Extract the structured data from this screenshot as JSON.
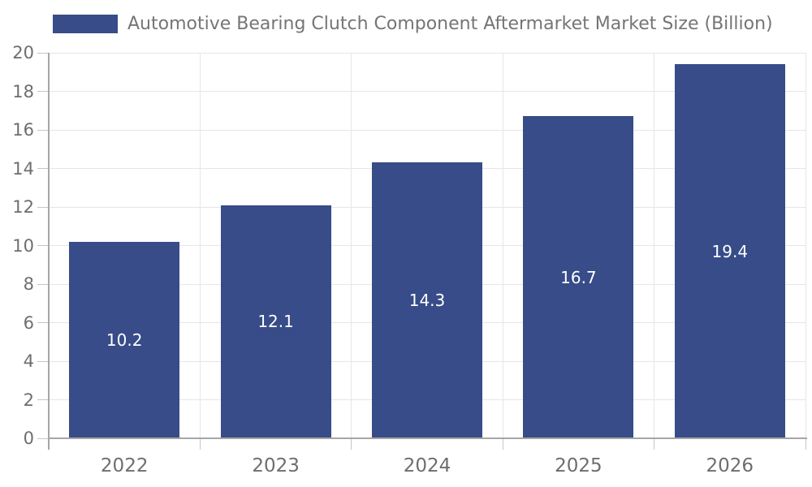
{
  "chart_data": {
    "type": "bar",
    "title": "Automotive Bearing Clutch Component Aftermarket Market Size (Billion)",
    "legend_label": "Automotive Bearing Clutch Component Aftermarket Market Size (Billion)",
    "categories": [
      "2022",
      "2023",
      "2024",
      "2025",
      "2026"
    ],
    "values": [
      10.2,
      12.1,
      14.3,
      16.7,
      19.4
    ],
    "value_labels": [
      "10.2",
      "12.1",
      "14.3",
      "16.7",
      "19.4"
    ],
    "xlabel": "",
    "ylabel": "",
    "ylim": [
      0,
      20
    ],
    "ytick_step": 2,
    "ytick_labels": [
      "0",
      "2",
      "4",
      "6",
      "8",
      "10",
      "12",
      "14",
      "16",
      "18",
      "20"
    ],
    "grid": "on",
    "legend_position": "top-left",
    "colors": {
      "bar": "#374C88",
      "bar_value_text": "#ffffff",
      "axis_text": "#6e6e6e",
      "legend_text": "#757575",
      "gridline": "#e6e6e6",
      "tick": "#c6c6c6",
      "axis_line": "#a6a6a6",
      "background": "#ffffff"
    }
  }
}
